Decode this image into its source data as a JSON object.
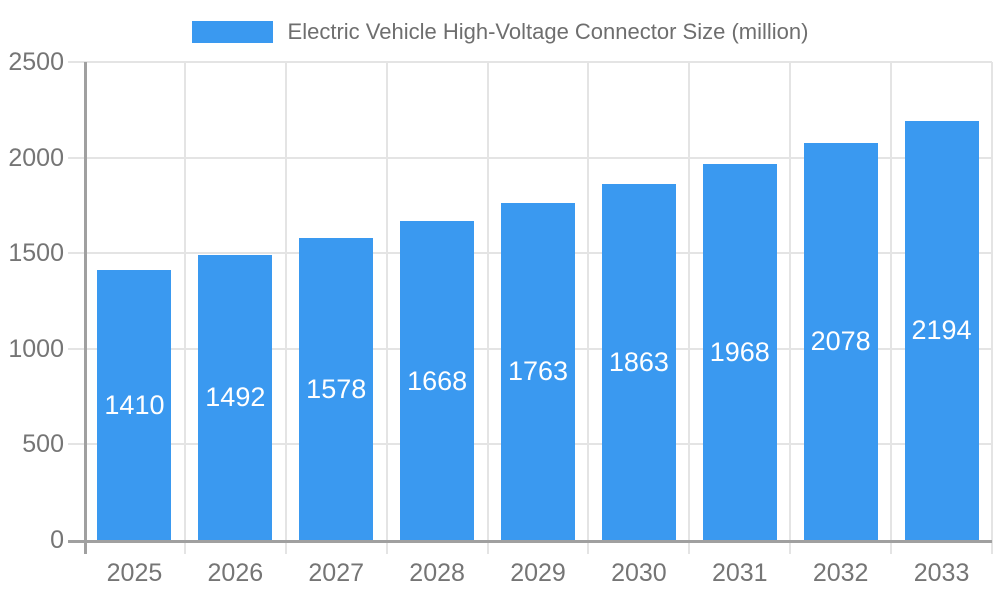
{
  "chart_data": {
    "type": "bar",
    "title": "Electric Vehicle High-Voltage Connector Size (million)",
    "legend": {
      "position": "top",
      "label": "Electric Vehicle High-Voltage Connector Size (million)"
    },
    "categories": [
      "2025",
      "2026",
      "2027",
      "2028",
      "2029",
      "2030",
      "2031",
      "2032",
      "2033"
    ],
    "values": [
      1410,
      1492,
      1578,
      1668,
      1763,
      1863,
      1968,
      2078,
      2194
    ],
    "bar_value_labels_shown": true,
    "xlabel": "",
    "ylabel": "",
    "ylim": [
      0,
      2500
    ],
    "y_ticks": [
      0,
      500,
      1000,
      1500,
      2000,
      2500
    ],
    "grid": true,
    "colors": {
      "bar": "#3A99F0",
      "grid": "#E4E4E4",
      "axis": "#A0A0A0",
      "tick_text": "#757575",
      "legend_text": "#6E6E6E",
      "bar_label_text": "#FFFFFF",
      "background": "#FFFFFF"
    }
  }
}
